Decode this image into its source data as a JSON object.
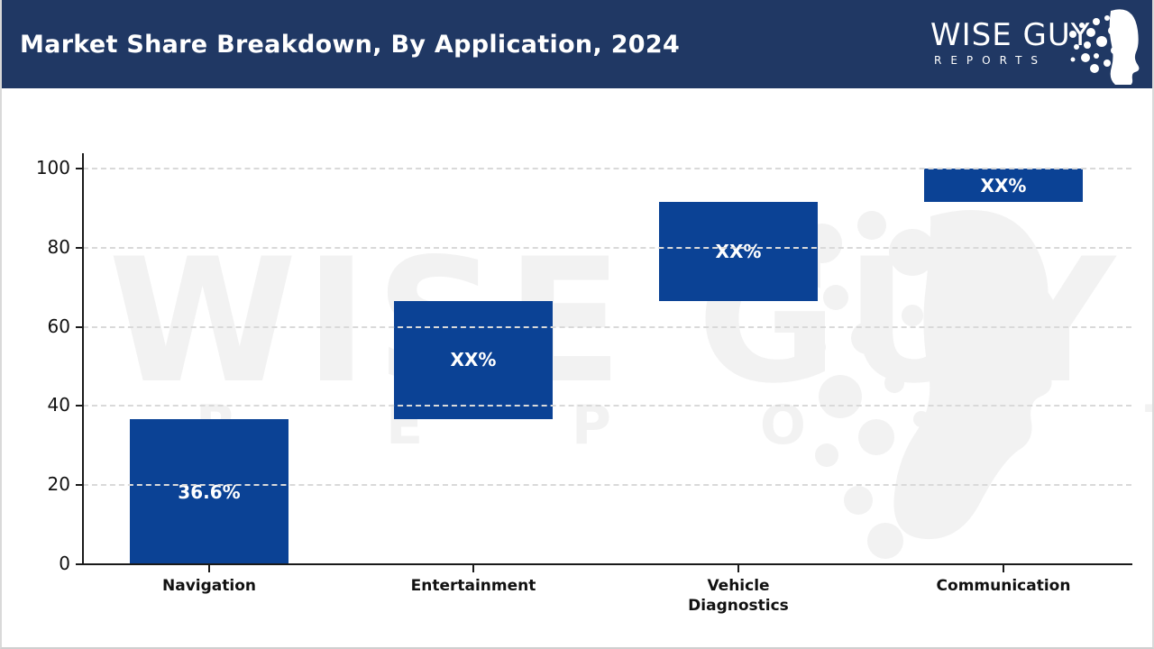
{
  "header": {
    "title": "Market Share Breakdown, By Application, 2024",
    "logo": {
      "line1": "WISE GUY",
      "line2": "REPORTS"
    }
  },
  "watermark": {
    "line1": "WISE GUY",
    "line2": "R E P O R T S"
  },
  "colors": {
    "header_bg": "#203864",
    "bar": "#0b4295",
    "bar_label": "#ffffff",
    "axis": "#1a1a1a",
    "gridline": "#d9d9d9",
    "watermark": "#f2f2f2"
  },
  "chart_data": {
    "type": "bar",
    "subtype": "waterfall",
    "title": "Market Share Breakdown, By Application, 2024",
    "categories": [
      "Navigation",
      "Entertainment",
      "Vehicle\nDiagnostics",
      "Communication"
    ],
    "segments": [
      {
        "category": "Navigation",
        "start": 0,
        "end": 36.6,
        "label": "36.6%"
      },
      {
        "category": "Entertainment",
        "start": 36.6,
        "end": 66.6,
        "label": "XX%"
      },
      {
        "category": "Vehicle Diagnostics",
        "start": 66.6,
        "end": 91.5,
        "label": "XX%"
      },
      {
        "category": "Communication",
        "start": 91.5,
        "end": 100,
        "label": "XX%"
      }
    ],
    "yticks": [
      0,
      20,
      40,
      60,
      80,
      100
    ],
    "ylim": [
      0,
      100
    ],
    "grid": "dashed horizontal, drawn over bars",
    "legend": "none",
    "xlabel": "",
    "ylabel": ""
  }
}
